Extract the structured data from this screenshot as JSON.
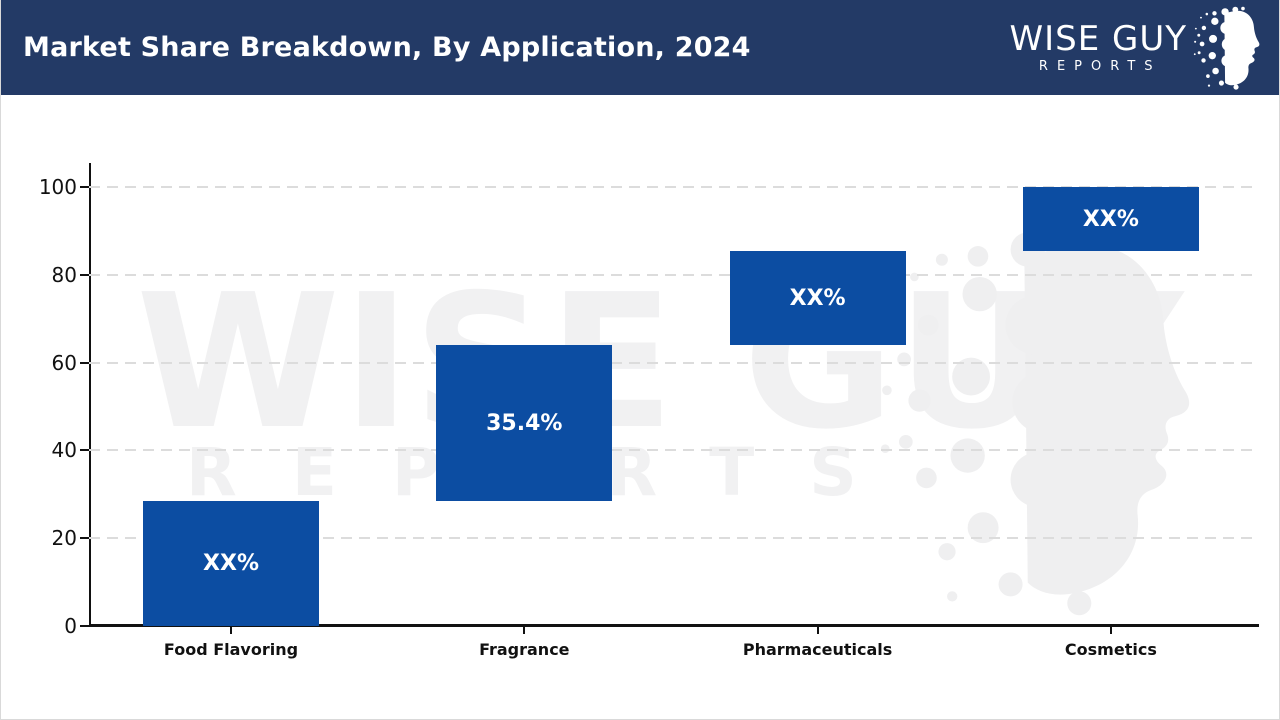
{
  "header": {
    "title": "Market Share Breakdown, By Application, 2024",
    "logo_line1": "WISE GUY",
    "logo_line2": "REPORTS"
  },
  "watermark": {
    "line1": "WISE GUY",
    "line2": "REPORTS"
  },
  "chart_data": {
    "type": "bar",
    "subtype": "waterfall-floating-bars",
    "title": "Market Share Breakdown, By Application, 2024",
    "categories": [
      "Food Flavoring",
      "Fragrance",
      "Pharmaceuticals",
      "Cosmetics"
    ],
    "segments": [
      {
        "category": "Food Flavoring",
        "start": 0,
        "end": 28.5,
        "label": "XX%"
      },
      {
        "category": "Fragrance",
        "start": 28.5,
        "end": 63.9,
        "label": "35.4%"
      },
      {
        "category": "Pharmaceuticals",
        "start": 63.9,
        "end": 85.4,
        "label": "XX%"
      },
      {
        "category": "Cosmetics",
        "start": 85.4,
        "end": 100,
        "label": "XX%"
      }
    ],
    "xlabel": "",
    "ylabel": "",
    "yticks": [
      0,
      20,
      40,
      60,
      80,
      100
    ],
    "ylim": [
      0,
      105
    ],
    "grid": "horizontal-dashed",
    "legend": "none",
    "bar_color": "#0c4da2",
    "bar_label_color": "#ffffff"
  },
  "colors": {
    "header_bg": "#233a66",
    "bar": "#0c4da2",
    "gridline": "#dcdcdc",
    "axis": "#111111",
    "watermark": "#f1f1f2",
    "page_border": "#d9d9d9"
  }
}
